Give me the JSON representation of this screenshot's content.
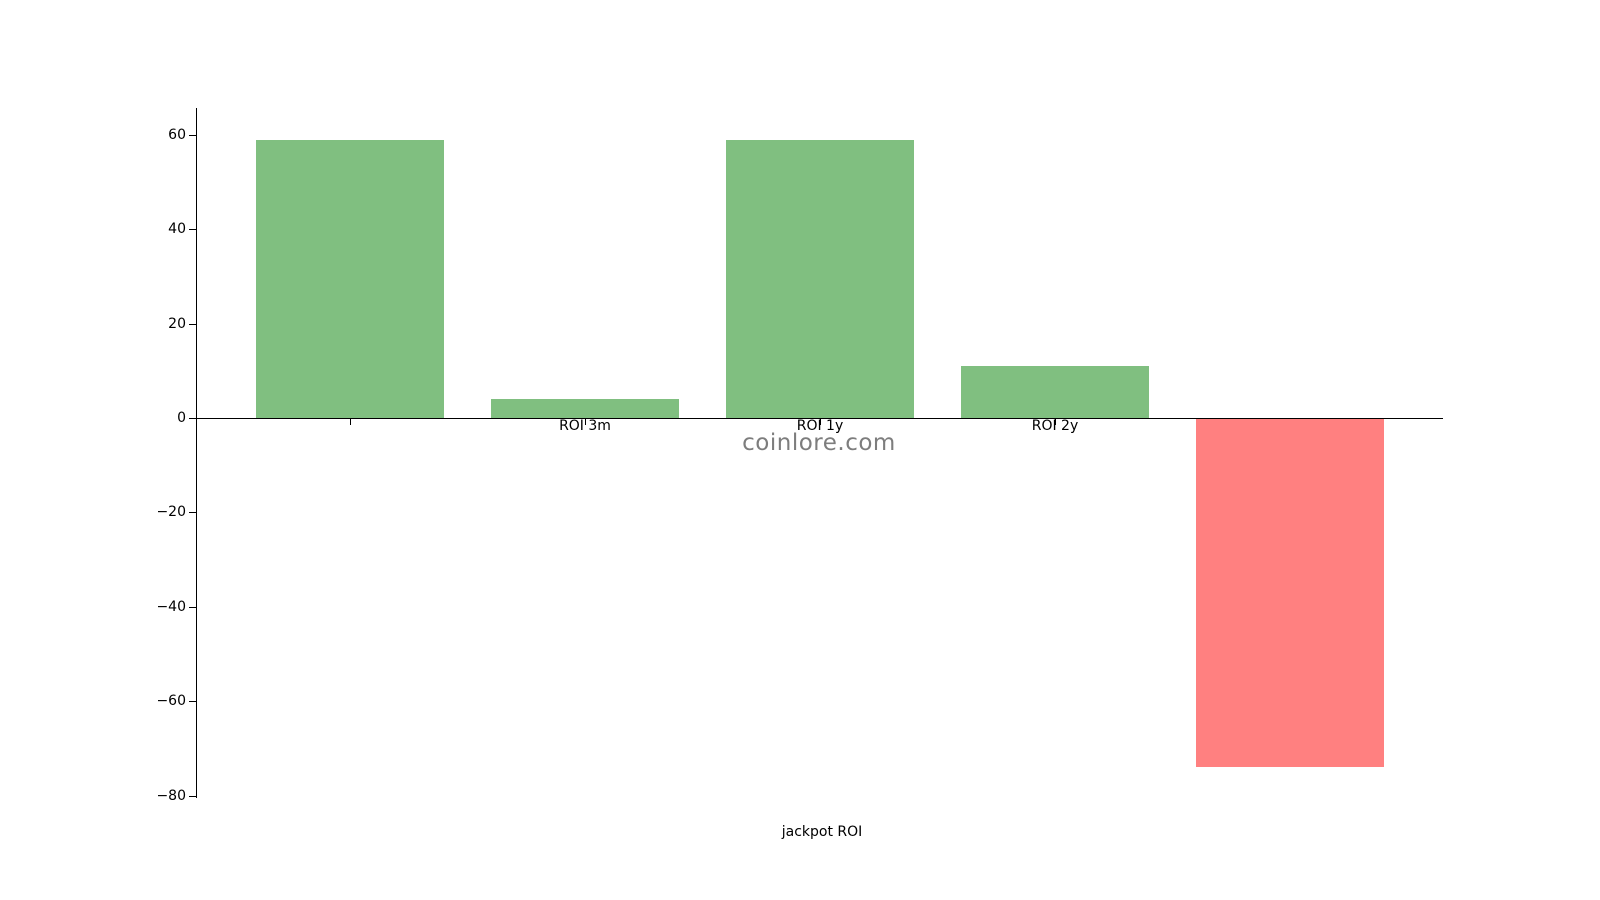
{
  "watermark": "coinlore.com",
  "chart_data": {
    "type": "bar",
    "title": "",
    "xlabel": "jackpot ROI",
    "ylabel": "",
    "categories": [
      "",
      "ROI 3m",
      "ROI 1y",
      "ROI 2y",
      ""
    ],
    "values": [
      59,
      4,
      59,
      11,
      -74
    ],
    "bar_colors": [
      "#80BF80",
      "#80BF80",
      "#80BF80",
      "#80BF80",
      "#FF8080"
    ],
    "positive_color": "#80BF80",
    "negative_color": "#FF8080",
    "yticks": [
      60,
      40,
      20,
      0,
      -20,
      -40,
      -60,
      -80
    ],
    "ytick_labels": [
      "60",
      "40",
      "20",
      "0",
      "−20",
      "−40",
      "−60",
      "−80"
    ],
    "ylim": [
      -80.65,
      65.65
    ],
    "grid": false,
    "legend": null,
    "watermark": "coinlore.com"
  }
}
